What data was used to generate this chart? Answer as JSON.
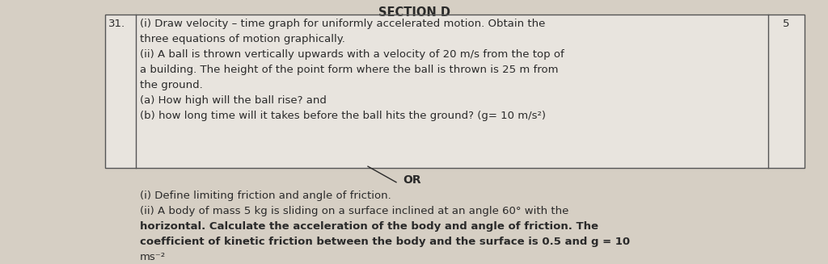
{
  "section_title": "SECTION D",
  "question_number": "31.",
  "marks": "5",
  "line1": "(i) Draw velocity – time graph for uniformly accelerated motion. Obtain the",
  "line2": "three equations of motion graphically.",
  "line3": "(ii) A ball is thrown vertically upwards with a velocity of 20 m/s from the top of",
  "line4": "a building. The height of the point form where the ball is thrown is 25 m from",
  "line5": "the ground.",
  "line6": "(a) How high will the ball rise? and",
  "line7": "(b) how long time will it takes before the ball hits the ground? (g= 10 m/s²)",
  "or_text": "OR",
  "line8": "(i) Define limiting friction and angle of friction.",
  "line9": "(ii) A body of mass 5 kg is sliding on a surface inclined at an angle 60° with the",
  "line10": "horizontal. Calculate the acceleration of the body and angle of friction. The",
  "line11": "coefficient of kinetic friction between the body and the surface is 0.5 and g = 10",
  "line12": "ms⁻²",
  "bg_color": "#d6cfc4",
  "cell_bg": "#e8e4de",
  "text_color": "#2a2a2a",
  "border_color": "#555555",
  "title_fontsize": 10.5,
  "body_fontsize": 9.5
}
